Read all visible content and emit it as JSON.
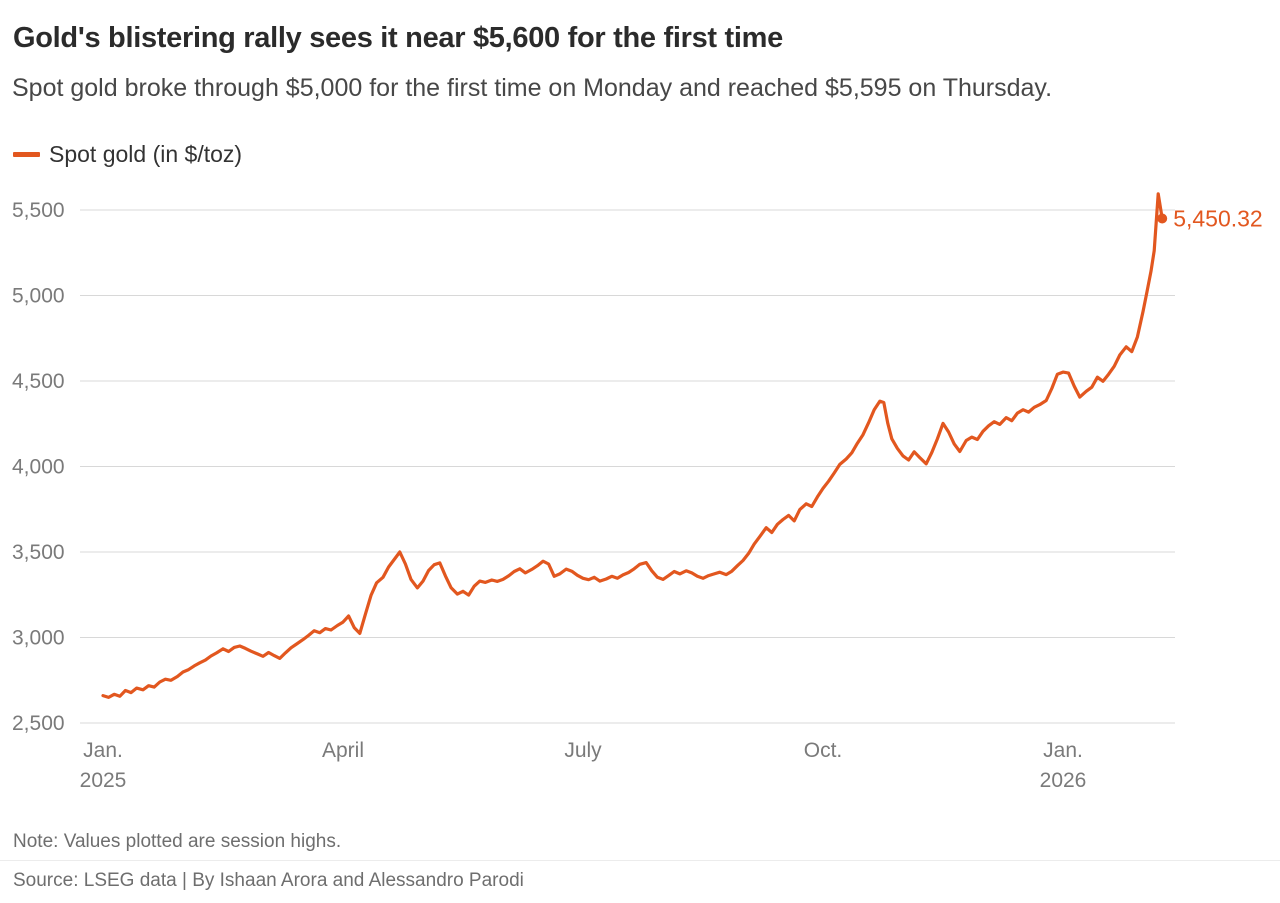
{
  "header": {
    "title": "Gold's blistering rally sees it near $5,600 for the first time",
    "subtitle": "Spot gold broke through $5,000 for the first time on Monday and reached $5,595 on Thursday."
  },
  "legend": {
    "label": "Spot gold (in $/toz)",
    "color": "#e2571f"
  },
  "chart_data": {
    "type": "line",
    "title": "Gold's blistering rally sees it near $5,600 for the first time",
    "xlabel": "",
    "ylabel": "Spot gold (in $/toz)",
    "x_unit": "months from Jan 1, 2025",
    "ylim": [
      2500,
      5600
    ],
    "grid": "horizontal",
    "grid_color": "#d8d8d8",
    "tick_color": "#7a7a7a",
    "legend_position": "top-left",
    "y_ticks": [
      2500,
      3000,
      3500,
      4000,
      4500,
      5000,
      5500
    ],
    "x_ticks": [
      {
        "month": 0,
        "label": "Jan.",
        "sublabel": "2025"
      },
      {
        "month": 3,
        "label": "April",
        "sublabel": ""
      },
      {
        "month": 6,
        "label": "July",
        "sublabel": ""
      },
      {
        "month": 9,
        "label": "Oct.",
        "sublabel": ""
      },
      {
        "month": 12,
        "label": "Jan.",
        "sublabel": "2026"
      }
    ],
    "end_label": "5,450.32",
    "end_value": 5450.32,
    "peak_value": 5595,
    "series": [
      {
        "name": "Spot gold (in $/toz)",
        "color": "#e2571f",
        "points": [
          [
            0.0,
            2660
          ],
          [
            0.07,
            2650
          ],
          [
            0.14,
            2668
          ],
          [
            0.21,
            2656
          ],
          [
            0.28,
            2690
          ],
          [
            0.35,
            2678
          ],
          [
            0.42,
            2704
          ],
          [
            0.5,
            2694
          ],
          [
            0.57,
            2718
          ],
          [
            0.64,
            2710
          ],
          [
            0.71,
            2740
          ],
          [
            0.78,
            2756
          ],
          [
            0.85,
            2750
          ],
          [
            0.93,
            2772
          ],
          [
            1.0,
            2798
          ],
          [
            1.07,
            2812
          ],
          [
            1.14,
            2834
          ],
          [
            1.21,
            2852
          ],
          [
            1.28,
            2868
          ],
          [
            1.35,
            2892
          ],
          [
            1.42,
            2910
          ],
          [
            1.5,
            2934
          ],
          [
            1.57,
            2918
          ],
          [
            1.64,
            2942
          ],
          [
            1.71,
            2950
          ],
          [
            1.78,
            2936
          ],
          [
            1.85,
            2920
          ],
          [
            1.93,
            2904
          ],
          [
            2.0,
            2890
          ],
          [
            2.07,
            2912
          ],
          [
            2.14,
            2894
          ],
          [
            2.21,
            2878
          ],
          [
            2.28,
            2910
          ],
          [
            2.35,
            2940
          ],
          [
            2.42,
            2962
          ],
          [
            2.5,
            2988
          ],
          [
            2.57,
            3012
          ],
          [
            2.64,
            3040
          ],
          [
            2.71,
            3028
          ],
          [
            2.78,
            3052
          ],
          [
            2.85,
            3044
          ],
          [
            2.93,
            3070
          ],
          [
            3.0,
            3090
          ],
          [
            3.07,
            3126
          ],
          [
            3.14,
            3058
          ],
          [
            3.21,
            3024
          ],
          [
            3.28,
            3136
          ],
          [
            3.35,
            3246
          ],
          [
            3.42,
            3320
          ],
          [
            3.5,
            3352
          ],
          [
            3.57,
            3412
          ],
          [
            3.64,
            3456
          ],
          [
            3.71,
            3500
          ],
          [
            3.78,
            3430
          ],
          [
            3.85,
            3340
          ],
          [
            3.93,
            3290
          ],
          [
            4.0,
            3330
          ],
          [
            4.07,
            3392
          ],
          [
            4.14,
            3426
          ],
          [
            4.21,
            3436
          ],
          [
            4.28,
            3360
          ],
          [
            4.35,
            3292
          ],
          [
            4.43,
            3254
          ],
          [
            4.5,
            3270
          ],
          [
            4.57,
            3248
          ],
          [
            4.64,
            3300
          ],
          [
            4.71,
            3330
          ],
          [
            4.78,
            3322
          ],
          [
            4.86,
            3336
          ],
          [
            4.93,
            3328
          ],
          [
            5.0,
            3340
          ],
          [
            5.07,
            3360
          ],
          [
            5.14,
            3386
          ],
          [
            5.21,
            3402
          ],
          [
            5.28,
            3378
          ],
          [
            5.36,
            3398
          ],
          [
            5.43,
            3420
          ],
          [
            5.5,
            3446
          ],
          [
            5.57,
            3430
          ],
          [
            5.64,
            3358
          ],
          [
            5.71,
            3372
          ],
          [
            5.79,
            3400
          ],
          [
            5.86,
            3388
          ],
          [
            5.93,
            3364
          ],
          [
            6.0,
            3346
          ],
          [
            6.07,
            3338
          ],
          [
            6.14,
            3352
          ],
          [
            6.21,
            3330
          ],
          [
            6.29,
            3342
          ],
          [
            6.36,
            3358
          ],
          [
            6.43,
            3346
          ],
          [
            6.5,
            3366
          ],
          [
            6.57,
            3380
          ],
          [
            6.64,
            3402
          ],
          [
            6.71,
            3428
          ],
          [
            6.79,
            3438
          ],
          [
            6.86,
            3390
          ],
          [
            6.93,
            3352
          ],
          [
            7.0,
            3340
          ],
          [
            7.07,
            3362
          ],
          [
            7.14,
            3386
          ],
          [
            7.21,
            3372
          ],
          [
            7.29,
            3390
          ],
          [
            7.36,
            3378
          ],
          [
            7.43,
            3358
          ],
          [
            7.5,
            3346
          ],
          [
            7.57,
            3362
          ],
          [
            7.64,
            3372
          ],
          [
            7.71,
            3382
          ],
          [
            7.79,
            3368
          ],
          [
            7.86,
            3388
          ],
          [
            7.93,
            3420
          ],
          [
            8.0,
            3450
          ],
          [
            8.07,
            3492
          ],
          [
            8.14,
            3546
          ],
          [
            8.21,
            3590
          ],
          [
            8.29,
            3642
          ],
          [
            8.36,
            3614
          ],
          [
            8.43,
            3662
          ],
          [
            8.5,
            3690
          ],
          [
            8.57,
            3714
          ],
          [
            8.64,
            3682
          ],
          [
            8.71,
            3748
          ],
          [
            8.79,
            3782
          ],
          [
            8.86,
            3766
          ],
          [
            8.93,
            3822
          ],
          [
            9.0,
            3872
          ],
          [
            9.07,
            3914
          ],
          [
            9.14,
            3962
          ],
          [
            9.21,
            4012
          ],
          [
            9.29,
            4044
          ],
          [
            9.36,
            4080
          ],
          [
            9.43,
            4136
          ],
          [
            9.5,
            4186
          ],
          [
            9.57,
            4256
          ],
          [
            9.64,
            4332
          ],
          [
            9.71,
            4382
          ],
          [
            9.76,
            4374
          ],
          [
            9.81,
            4252
          ],
          [
            9.86,
            4162
          ],
          [
            9.93,
            4106
          ],
          [
            10.0,
            4062
          ],
          [
            10.07,
            4038
          ],
          [
            10.14,
            4086
          ],
          [
            10.21,
            4052
          ],
          [
            10.29,
            4016
          ],
          [
            10.36,
            4082
          ],
          [
            10.43,
            4162
          ],
          [
            10.5,
            4252
          ],
          [
            10.57,
            4202
          ],
          [
            10.64,
            4132
          ],
          [
            10.71,
            4088
          ],
          [
            10.79,
            4152
          ],
          [
            10.86,
            4172
          ],
          [
            10.93,
            4158
          ],
          [
            11.0,
            4206
          ],
          [
            11.07,
            4238
          ],
          [
            11.14,
            4262
          ],
          [
            11.21,
            4246
          ],
          [
            11.29,
            4286
          ],
          [
            11.36,
            4268
          ],
          [
            11.43,
            4312
          ],
          [
            11.5,
            4332
          ],
          [
            11.57,
            4318
          ],
          [
            11.64,
            4346
          ],
          [
            11.71,
            4362
          ],
          [
            11.79,
            4386
          ],
          [
            11.86,
            4456
          ],
          [
            11.93,
            4540
          ],
          [
            12.0,
            4552
          ],
          [
            12.07,
            4546
          ],
          [
            12.14,
            4470
          ],
          [
            12.21,
            4406
          ],
          [
            12.29,
            4440
          ],
          [
            12.36,
            4464
          ],
          [
            12.43,
            4522
          ],
          [
            12.5,
            4498
          ],
          [
            12.57,
            4540
          ],
          [
            12.64,
            4586
          ],
          [
            12.71,
            4652
          ],
          [
            12.79,
            4700
          ],
          [
            12.86,
            4672
          ],
          [
            12.93,
            4758
          ],
          [
            13.0,
            4906
          ],
          [
            13.05,
            5022
          ],
          [
            13.1,
            5142
          ],
          [
            13.14,
            5262
          ],
          [
            13.19,
            5595
          ],
          [
            13.24,
            5450.32
          ]
        ]
      }
    ]
  },
  "footer": {
    "note": "Note: Values plotted are session highs.",
    "source": "Source: LSEG data | By Ishaan Arora and Alessandro Parodi"
  }
}
